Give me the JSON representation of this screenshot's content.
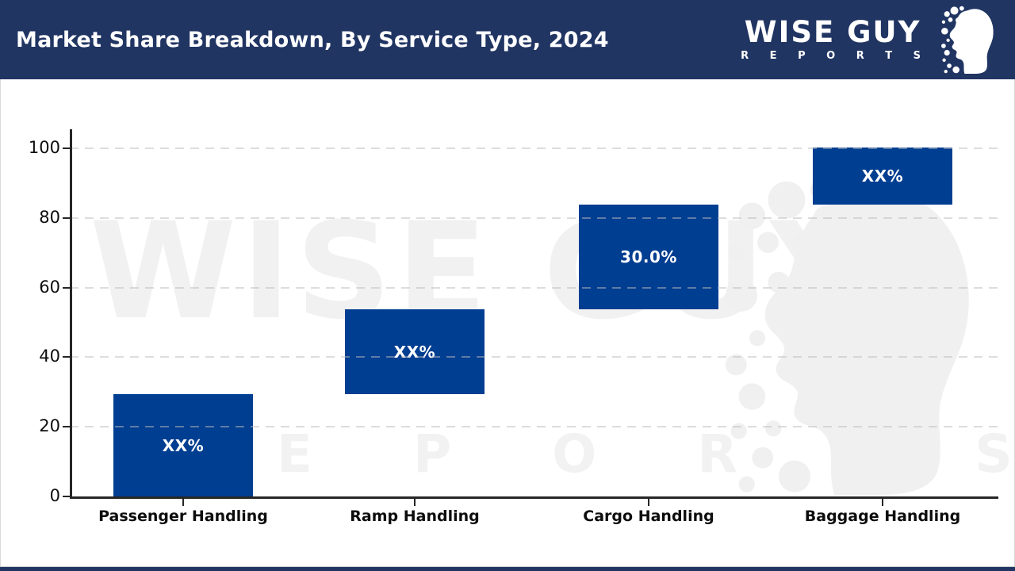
{
  "header": {
    "title": "Market Share Breakdown, By Service Type, 2024",
    "logo": {
      "main": "WISE GUY",
      "sub": "R E P O R T S",
      "face_icon": "dotted-head-profile-icon"
    }
  },
  "watermark": {
    "line1": "WISE GUY",
    "line2": "REPORTS",
    "face_icon": "dotted-head-profile-watermark"
  },
  "colors": {
    "header_bg": "#213563",
    "bar": "#003e91",
    "bar_label": "#ffffff",
    "axis": "#262626",
    "tick_label": "#0d0d0d",
    "gridline": "#e0e0e0",
    "watermark": "#f1f1f1",
    "footer_bar": "#213563"
  },
  "chart_data": {
    "type": "bar",
    "subtype": "waterfall-floating-bars",
    "title": "Market Share Breakdown, By Service Type, 2024",
    "categories": [
      "Passenger Handling",
      "Ramp Handling",
      "Cargo Handling",
      "Baggage Handling"
    ],
    "segments": [
      {
        "category": "Passenger Handling",
        "start": 0,
        "end": 29.3,
        "value_label": "XX%"
      },
      {
        "category": "Ramp Handling",
        "start": 29.3,
        "end": 53.8,
        "value_label": "XX%"
      },
      {
        "category": "Cargo Handling",
        "start": 53.8,
        "end": 83.8,
        "value": 30.0,
        "value_label": "30.0%"
      },
      {
        "category": "Baggage Handling",
        "start": 83.8,
        "end": 100.2,
        "value_label": "XX%"
      }
    ],
    "xlabel": "",
    "ylabel": "",
    "ylim": [
      0,
      100
    ],
    "yticks": [
      0,
      20,
      40,
      60,
      80,
      100
    ],
    "grid": "horizontal dashed, drawn over bars",
    "legend": "none"
  }
}
